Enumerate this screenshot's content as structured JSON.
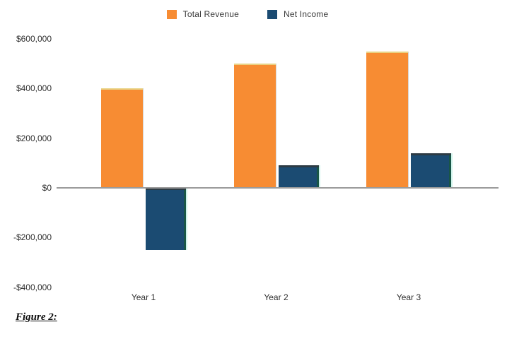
{
  "figure_caption": "Figure 2:",
  "colors": {
    "total_revenue": "#F78C33",
    "net_income": "#1B4B72",
    "axis_line": "#9B9B9B",
    "label_text": "#2E2E2E"
  },
  "legend": {
    "items": [
      {
        "label": "Total Revenue",
        "color": "#F78C33"
      },
      {
        "label": "Net Income",
        "color": "#1B4B72"
      }
    ]
  },
  "chart_data": {
    "type": "bar",
    "categories": [
      "Year 1",
      "Year 2",
      "Year 3"
    ],
    "series": [
      {
        "name": "Total Revenue",
        "color": "#F78C33",
        "values": [
          400000,
          500000,
          550000
        ]
      },
      {
        "name": "Net Income",
        "color": "#1B4B72",
        "values": [
          -250000,
          90000,
          140000
        ]
      }
    ],
    "title": "",
    "xlabel": "",
    "ylabel": "",
    "ylim": [
      -400000,
      600000
    ],
    "ytick_step": 200000,
    "ytick_labels": [
      "$600,000",
      "$400,000",
      "$200,000",
      "$0",
      "-$200,000",
      "-$400,000"
    ],
    "grid": false,
    "legend_position": "top-center"
  }
}
